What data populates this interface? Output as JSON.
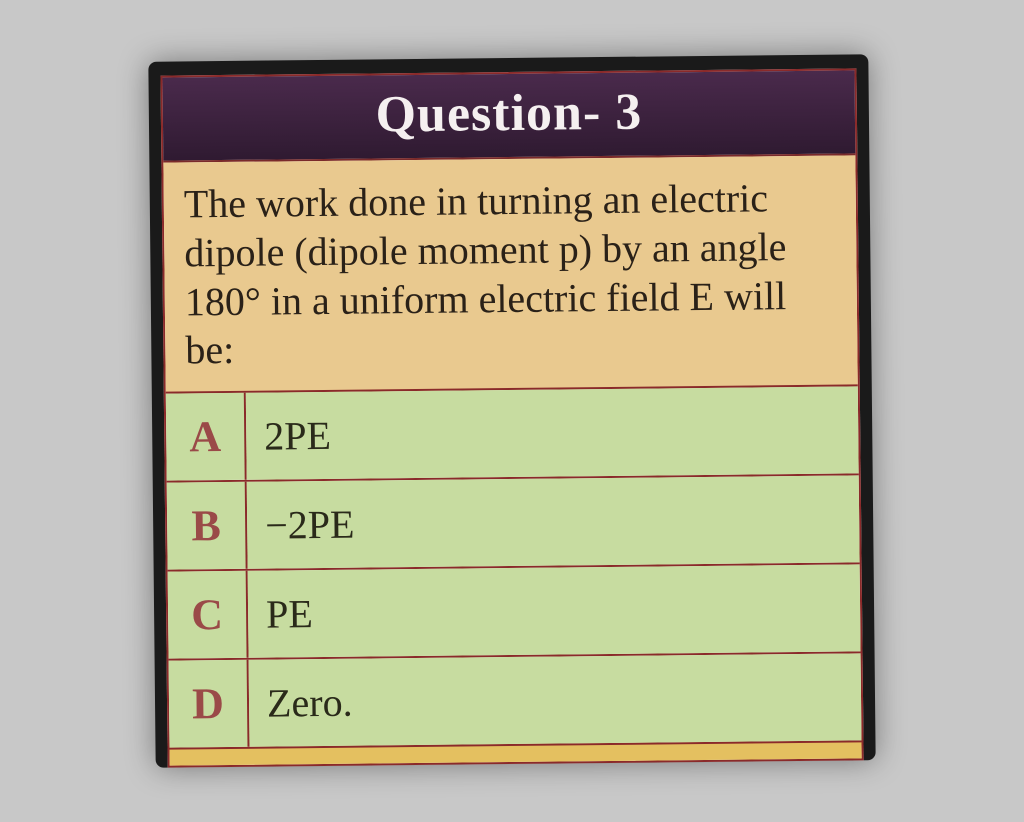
{
  "question": {
    "header": "Question- 3",
    "prompt": "The work done in turning an electric dipole (dipole moment p) by an angle 180° in a uniform electric field E will be:",
    "options": [
      {
        "letter": "A",
        "text": "2PE"
      },
      {
        "letter": "B",
        "text": "−2PE"
      },
      {
        "letter": "C",
        "text": "PE"
      },
      {
        "letter": "D",
        "text": "Zero."
      }
    ]
  },
  "styles": {
    "header_bg": "#3b1f3d",
    "header_fg": "#f5f0f0",
    "body_bg": "#e9c98f",
    "option_bg": "#c7dca0",
    "option_letter_fg": "#9a4a48",
    "border_color": "#8a2a2a",
    "footer_bg": "#e4c060",
    "page_bg": "#c8c8c8",
    "header_fontsize": 52,
    "body_fontsize": 40,
    "option_fontsize": 40,
    "letter_fontsize": 44
  }
}
